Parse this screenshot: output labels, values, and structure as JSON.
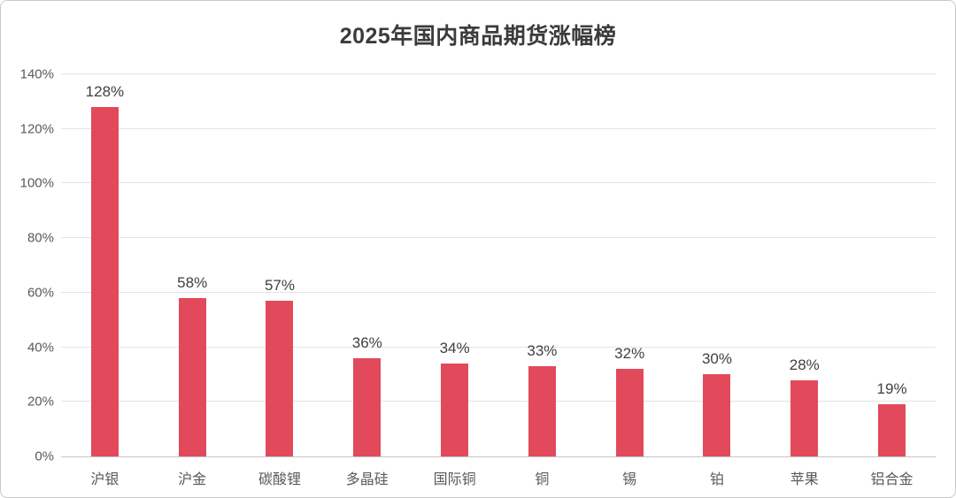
{
  "chart_data": {
    "type": "bar",
    "title": "2025年国内商品期货涨幅榜",
    "categories": [
      "沪银",
      "沪金",
      "碳酸锂",
      "多晶硅",
      "国际铜",
      "铜",
      "锡",
      "铂",
      "苹果",
      "铝合金"
    ],
    "values": [
      128,
      58,
      57,
      36,
      34,
      33,
      32,
      30,
      28,
      19
    ],
    "data_labels": [
      "128%",
      "58%",
      "57%",
      "36%",
      "34%",
      "33%",
      "32%",
      "30%",
      "28%",
      "19%"
    ],
    "xlabel": "",
    "ylabel": "",
    "ylim": [
      0,
      140
    ],
    "ytick_step": 20,
    "ytick_labels": [
      "0%",
      "20%",
      "40%",
      "60%",
      "80%",
      "100%",
      "120%",
      "140%"
    ],
    "grid": true,
    "legend_position": "none",
    "colors": {
      "bar": "#e2495b",
      "title_text": "#3b3b3b",
      "axis_text": "#595959",
      "data_label_text": "#404040",
      "gridline": "#e4e4e4",
      "baseline": "#c6c6c6",
      "card_border": "#c9c9c9",
      "background": "#ffffff"
    }
  }
}
